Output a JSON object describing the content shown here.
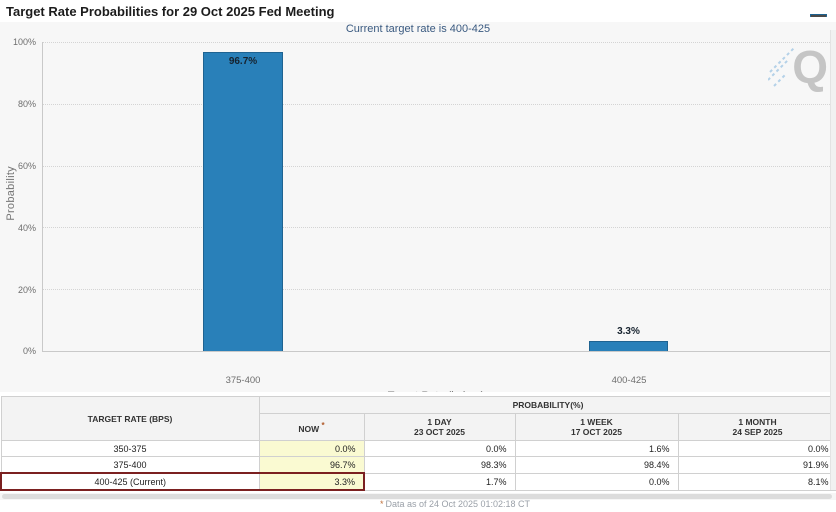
{
  "header": {
    "title": "Target Rate Probabilities for 29 Oct 2025 Fed Meeting"
  },
  "chart_data": {
    "type": "bar",
    "title": "Target Rate Probabilities for 29 Oct 2025 Fed Meeting",
    "subtitle": "Current target rate is 400-425",
    "categories": [
      "375-400",
      "400-425"
    ],
    "values": [
      96.7,
      3.3
    ],
    "labels": [
      "96.7%",
      "3.3%"
    ],
    "xlabel": "Target Rate (in bps)",
    "ylabel": "Probability",
    "ylim": [
      0,
      100
    ],
    "y_ticks": [
      "100%",
      "80%",
      "60%",
      "40%",
      "20%",
      "0%"
    ],
    "grid": "horizontal dotted, legend none",
    "bar_color": "#2980b9"
  },
  "watermark": {
    "letter": "Q"
  },
  "table": {
    "col_target": "TARGET RATE (BPS)",
    "col_probability": "PROBABILITY(%)",
    "now_label": "NOW",
    "now_sup": "*",
    "subcols": [
      {
        "line1": "1 DAY",
        "line2": "23 OCT 2025"
      },
      {
        "line1": "1 WEEK",
        "line2": "17 OCT 2025"
      },
      {
        "line1": "1 MONTH",
        "line2": "24 SEP 2025"
      }
    ],
    "rows": [
      {
        "rate": "350-375",
        "now": "0.0%",
        "d1": "0.0%",
        "w1": "1.6%",
        "m1": "0.0%"
      },
      {
        "rate": "375-400",
        "now": "96.7%",
        "d1": "98.3%",
        "w1": "98.4%",
        "m1": "91.9%"
      },
      {
        "rate": "400-425 (Current)",
        "now": "3.3%",
        "d1": "1.7%",
        "w1": "0.0%",
        "m1": "8.1%"
      }
    ]
  },
  "footer": {
    "asterisk": "*",
    "note": "Data as of 24 Oct 2025 01:02:18 CT"
  },
  "colors": {
    "accent_bar": "#2980b9",
    "bar_label": "#16222e",
    "subtitle_text": "#3a5a80",
    "now_column_bg": "#fafad2",
    "current_row_border": "#7b2020"
  }
}
